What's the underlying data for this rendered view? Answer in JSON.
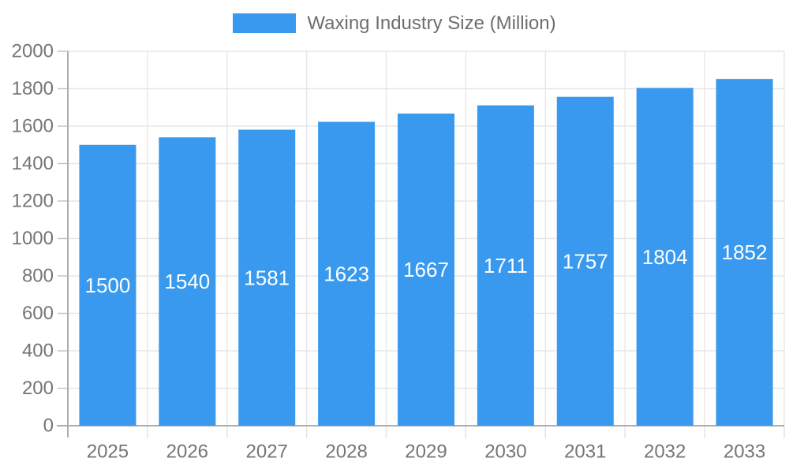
{
  "legend": {
    "label": "Waxing Industry Size (Million)"
  },
  "chart_data": {
    "type": "bar",
    "title": "Waxing Industry Size (Million)",
    "categories": [
      "2025",
      "2026",
      "2027",
      "2028",
      "2029",
      "2030",
      "2031",
      "2032",
      "2033"
    ],
    "series": [
      {
        "name": "Waxing Industry Size (Million)",
        "values": [
          1500,
          1540,
          1581,
          1623,
          1667,
          1711,
          1757,
          1804,
          1852
        ]
      }
    ],
    "xlabel": "",
    "ylabel": "",
    "ylim": [
      0,
      2000
    ],
    "ytick_step": 200,
    "yticks": [
      0,
      200,
      400,
      600,
      800,
      1000,
      1200,
      1400,
      1600,
      1800,
      2000
    ],
    "grid": true,
    "bar_value_labels_inside": true,
    "legend_position": "top-center",
    "colors": {
      "bar": "#3999ee",
      "bar_label_text": "#ffffff",
      "axis_line": "#adadad",
      "gridline": "#e7e7e7",
      "y_tick": "#c2c2c2",
      "x_tick": "#e2e2e2",
      "tick_label": "#757575",
      "legend_text": "#6e6e6e",
      "background": "#ffffff"
    }
  }
}
